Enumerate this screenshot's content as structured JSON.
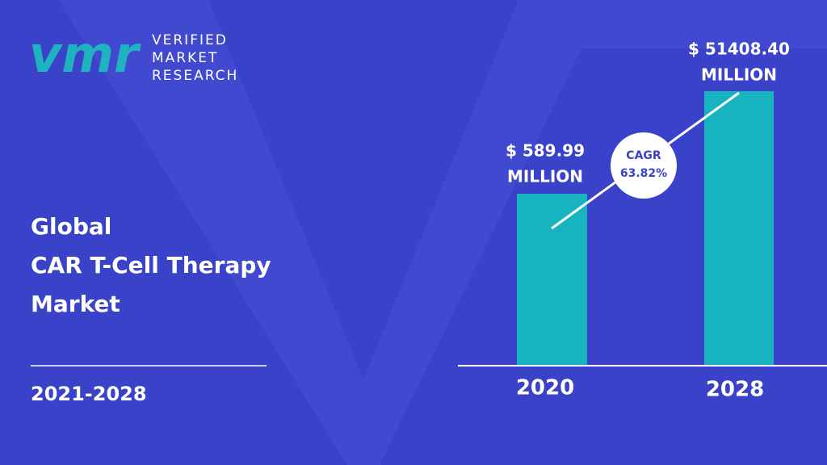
{
  "logo": {
    "mark": "vmr",
    "lines": [
      "VERIFIED",
      "MARKET",
      "RESEARCH"
    ]
  },
  "title": {
    "lines": [
      "Global",
      "CAR T-Cell Therapy",
      "Market"
    ],
    "period": "2021-2028"
  },
  "bars": [
    {
      "category": "2020",
      "label_lines": [
        "$ 589.99",
        "MILLION"
      ]
    },
    {
      "category": "2028",
      "label_lines": [
        "$ 51408.40",
        "MILLION"
      ]
    }
  ],
  "cagr": {
    "label": "CAGR",
    "value": "63.82%"
  }
}
